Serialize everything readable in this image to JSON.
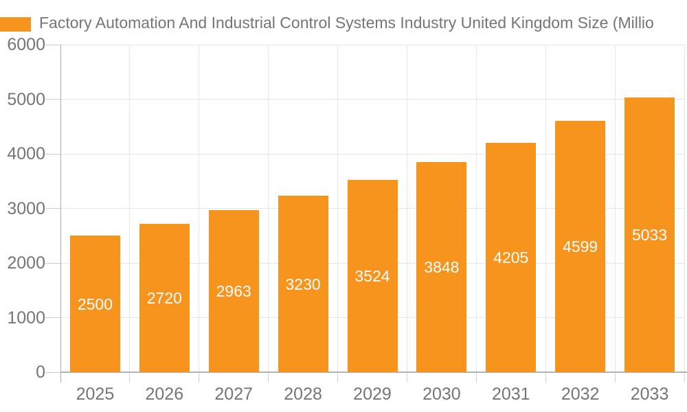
{
  "header": {
    "legend_swatch_color": "#F7941E"
  },
  "chart_data": {
    "type": "bar",
    "title": "Factory Automation And Industrial Control Systems Industry United Kingdom Size (Millio",
    "categories": [
      "2025",
      "2026",
      "2027",
      "2028",
      "2029",
      "2030",
      "2031",
      "2032",
      "2033"
    ],
    "values": [
      2500,
      2720,
      2963,
      3230,
      3524,
      3848,
      4205,
      4599,
      5033
    ],
    "bar_color": "#F7941E",
    "bar_label_color": "#FFFFFF",
    "xlabel": "",
    "ylabel": "",
    "ylim": [
      0,
      6000
    ],
    "yticks": [
      0,
      1000,
      2000,
      3000,
      4000,
      5000,
      6000
    ],
    "grid": true,
    "legend_position": "top-left",
    "axis_text_color": "#757575",
    "gridline_color": "#E6E6E6",
    "bar_label_position": "inside-center"
  }
}
